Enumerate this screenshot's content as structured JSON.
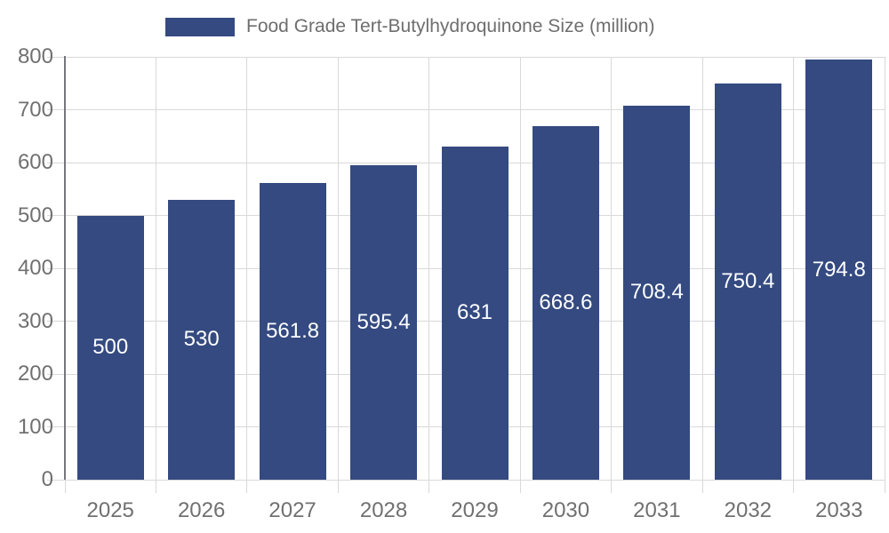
{
  "legend": {
    "label": "Food Grade Tert-Butylhydroquinone Size (million)"
  },
  "chart_data": {
    "type": "bar",
    "title": "Food Grade Tert-Butylhydroquinone Size (million)",
    "categories": [
      "2025",
      "2026",
      "2027",
      "2028",
      "2029",
      "2030",
      "2031",
      "2032",
      "2033"
    ],
    "values": [
      500,
      530,
      561.8,
      595.4,
      631,
      668.6,
      708.4,
      750.4,
      794.8
    ],
    "value_labels": [
      "500",
      "530",
      "561.8",
      "595.4",
      "631",
      "668.6",
      "708.4",
      "750.4",
      "794.8"
    ],
    "y_ticks": [
      0,
      100,
      200,
      300,
      400,
      500,
      600,
      700,
      800
    ],
    "ylim": [
      0,
      800
    ],
    "xlabel": "",
    "ylabel": "",
    "grid": true,
    "legend_position": "top",
    "colors": {
      "bar": "#344a80",
      "grid_line": "#d9d9d9",
      "axis_line": "#75777c",
      "tick_text": "#707070",
      "legend_text": "#6e6e6e",
      "value_text": "#ffffff",
      "background": "#ffffff"
    }
  }
}
